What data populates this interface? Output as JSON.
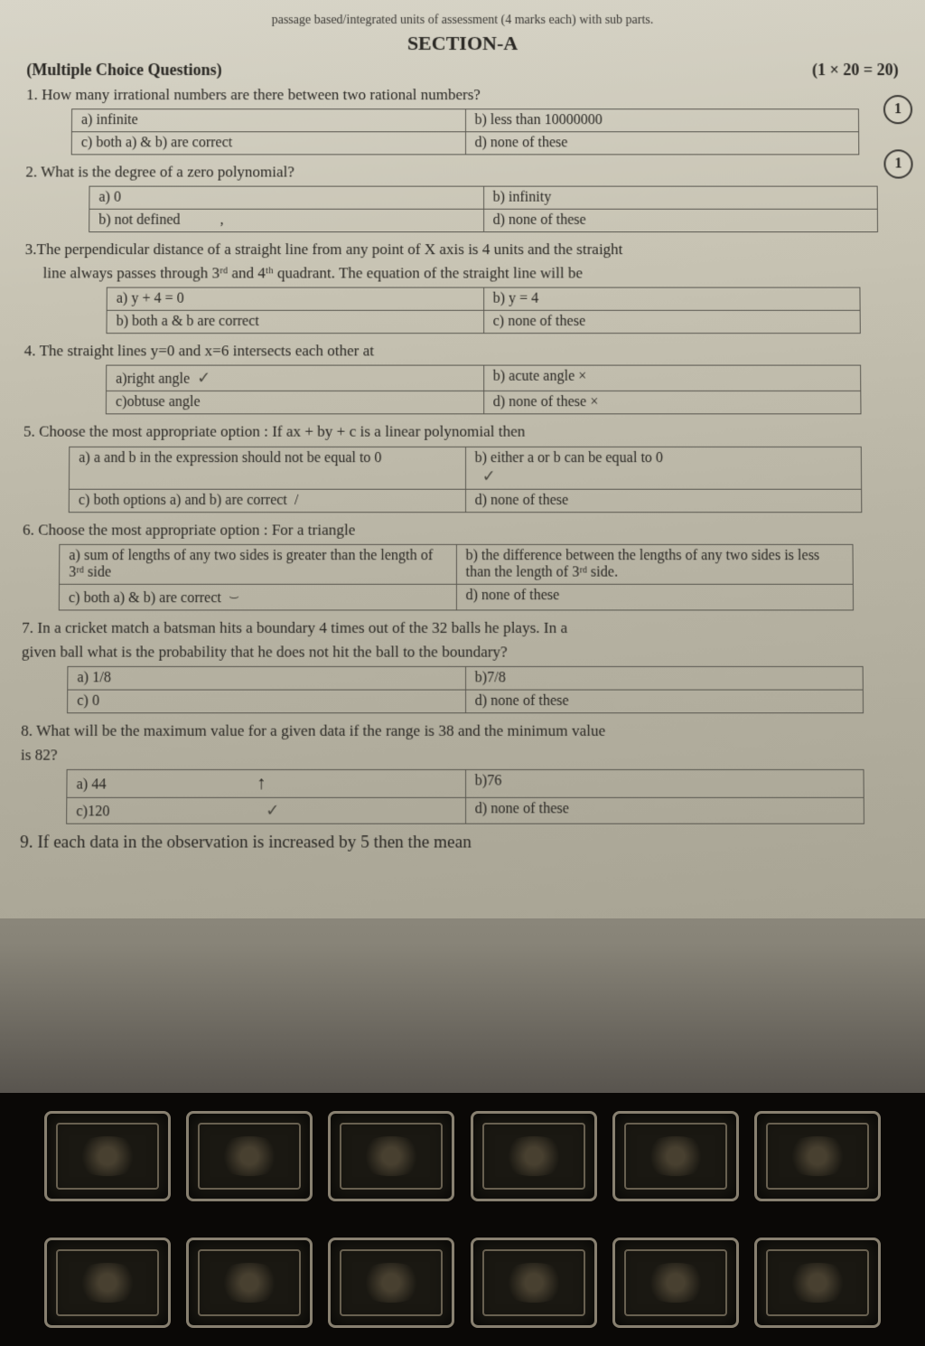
{
  "header_note": "passage based/integrated units of assessment (4 marks each) with sub parts.",
  "section_title": "SECTION-A",
  "mcq_label": "(Multiple Choice Questions)",
  "marks_formula": "(1 × 20 = 20)",
  "circle_marks": {
    "c1": "1",
    "c2": "1"
  },
  "questions": [
    {
      "num": "1.",
      "text": "How many irrational numbers are there between two rational numbers?",
      "options": {
        "a": "a) infinite",
        "b": "b) less than 10000000",
        "c": "c) both a) & b) are correct",
        "d": "d) none of these"
      }
    },
    {
      "num": "2.",
      "text": "What is the degree of a zero polynomial?",
      "options": {
        "a": "a) 0",
        "b": "b) infinity",
        "c": "b) not defined",
        "d": "d) none of these"
      }
    },
    {
      "num": "3.",
      "text": "The perpendicular distance of a straight line from any point of X axis is 4 units and the straight",
      "continuation": "line always passes through 3ʳᵈ and 4ᵗʰ quadrant. The equation of the straight line will be",
      "options": {
        "a": "a) y + 4 = 0",
        "b": "b) y = 4",
        "c": "b) both a & b are correct",
        "d": "c) none of these"
      }
    },
    {
      "num": "4.",
      "text": "The straight lines y=0 and x=6 intersects each other at",
      "options": {
        "a": "a)right angle",
        "b": "b) acute angle ×",
        "c": "c)obtuse angle",
        "d": "d) none of these ×"
      }
    },
    {
      "num": "5.",
      "text": "Choose the most appropriate option : If ax + by + c is a linear polynomial then",
      "options": {
        "a": "a) a and b in the expression should not be equal to 0",
        "b": "b) either a or b can be equal to 0",
        "c": "c) both options a) and b) are correct",
        "d": "d) none of these"
      }
    },
    {
      "num": "6.",
      "text": "Choose the most appropriate option : For a triangle",
      "options": {
        "a": "a) sum of lengths of any two sides is greater than the length of 3ʳᵈ side",
        "b": "b) the difference between the lengths of any two sides is less than the length of 3ʳᵈ side.",
        "c": "c) both a) & b) are correct",
        "d": "d) none of these"
      }
    },
    {
      "num": "7.",
      "text": "In a cricket match a batsman hits a boundary 4 times out of the 32 balls he plays. In a",
      "continuation": "given ball what is the probability that he does not hit the ball to the boundary?",
      "options": {
        "a": "a) 1/8",
        "b": "b)7/8",
        "c": "c) 0",
        "d": "d) none of these"
      }
    },
    {
      "num": "8.",
      "text": "What will be the maximum value for a given data if the range is 38 and the minimum value",
      "continuation": "is 82?",
      "options": {
        "a": "a) 44",
        "b": "b)76",
        "c": "c)120",
        "d": "d) none of these"
      }
    },
    {
      "num": "9.",
      "text": "If each data in the observation is increased by 5 then the mean"
    }
  ],
  "colors": {
    "paper_bg": "#c8c4b4",
    "text": "#2a2824",
    "border": "#5a5850",
    "pattern_bg": "#0a0806",
    "pattern_border": "#888070"
  }
}
